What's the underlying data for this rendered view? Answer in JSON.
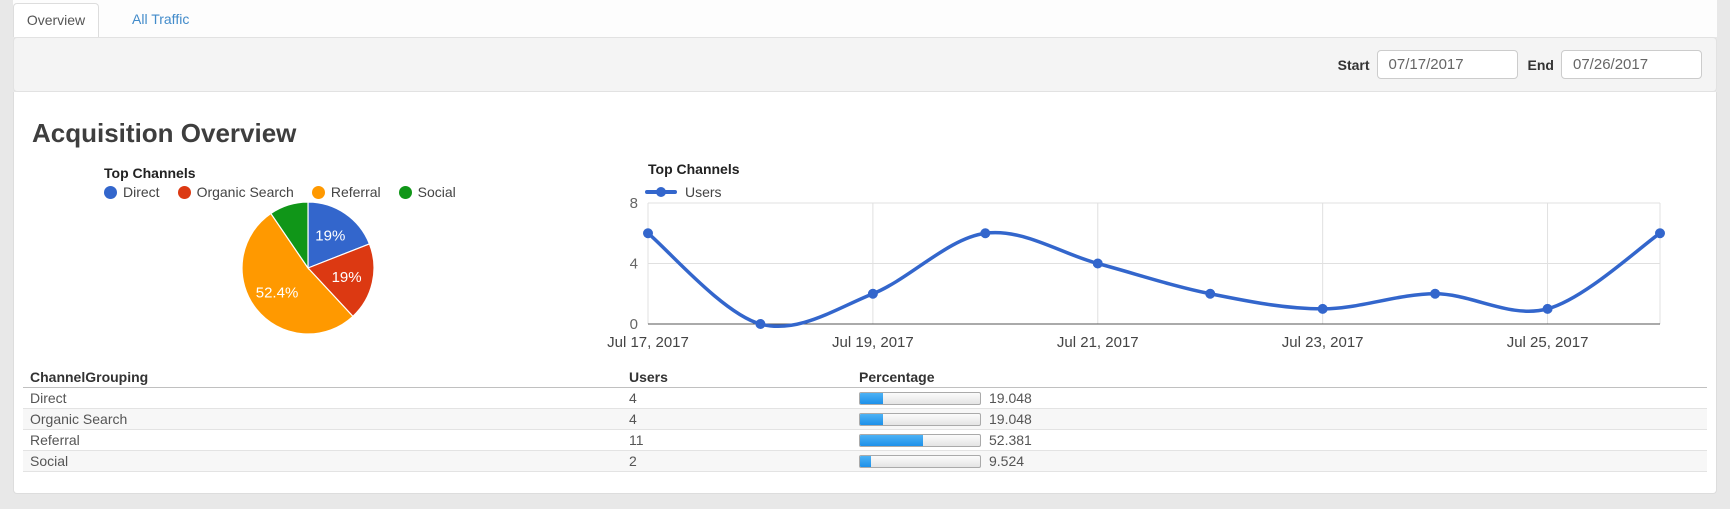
{
  "tabs": [
    {
      "label": "Overview"
    },
    {
      "label": "All Traffic"
    }
  ],
  "toolbar": {
    "start_label": "Start",
    "start_value": "07/17/2017",
    "end_label": "End",
    "end_value": "07/26/2017"
  },
  "page_title": "Acquisition Overview",
  "colors": {
    "blue": "#3366CC",
    "red": "#DC3912",
    "orange": "#FF9900",
    "green": "#109618",
    "bar_fill": "#2196F3",
    "link_blue": "#428bca"
  },
  "chart_data": [
    {
      "type": "pie",
      "title": "Top Channels",
      "legend_position": "top",
      "categories": [
        "Direct",
        "Organic Search",
        "Referral",
        "Social"
      ],
      "values": [
        19.048,
        19.048,
        52.381,
        9.524
      ],
      "slice_labels": [
        "19%",
        "19%",
        "52.4%",
        ""
      ],
      "colors": [
        "#3366CC",
        "#DC3912",
        "#FF9900",
        "#109618"
      ]
    },
    {
      "type": "line",
      "title": "Top Channels",
      "x": [
        "Jul 17, 2017",
        "Jul 18, 2017",
        "Jul 19, 2017",
        "Jul 20, 2017",
        "Jul 21, 2017",
        "Jul 22, 2017",
        "Jul 23, 2017",
        "Jul 24, 2017",
        "Jul 25, 2017",
        "Jul 26, 2017"
      ],
      "x_tick_labels": [
        "Jul 17, 2017",
        "Jul 19, 2017",
        "Jul 21, 2017",
        "Jul 23, 2017",
        "Jul 25, 2017"
      ],
      "x_tick_indices": [
        0,
        2,
        4,
        6,
        8
      ],
      "series": [
        {
          "name": "Users",
          "color": "#3366CC",
          "values": [
            6,
            0,
            2,
            6,
            4,
            2,
            1,
            2,
            1,
            6
          ]
        }
      ],
      "ylim": [
        0,
        8
      ],
      "yticks": [
        0,
        4,
        8
      ],
      "grid": true,
      "legend_position": "top"
    }
  ],
  "table": {
    "columns": [
      "ChannelGrouping",
      "Users",
      "Percentage"
    ],
    "rows": [
      {
        "channel": "Direct",
        "users": "4",
        "percentage": "19.048"
      },
      {
        "channel": "Organic Search",
        "users": "4",
        "percentage": "19.048"
      },
      {
        "channel": "Referral",
        "users": "11",
        "percentage": "52.381"
      },
      {
        "channel": "Social",
        "users": "2",
        "percentage": "9.524"
      }
    ]
  }
}
